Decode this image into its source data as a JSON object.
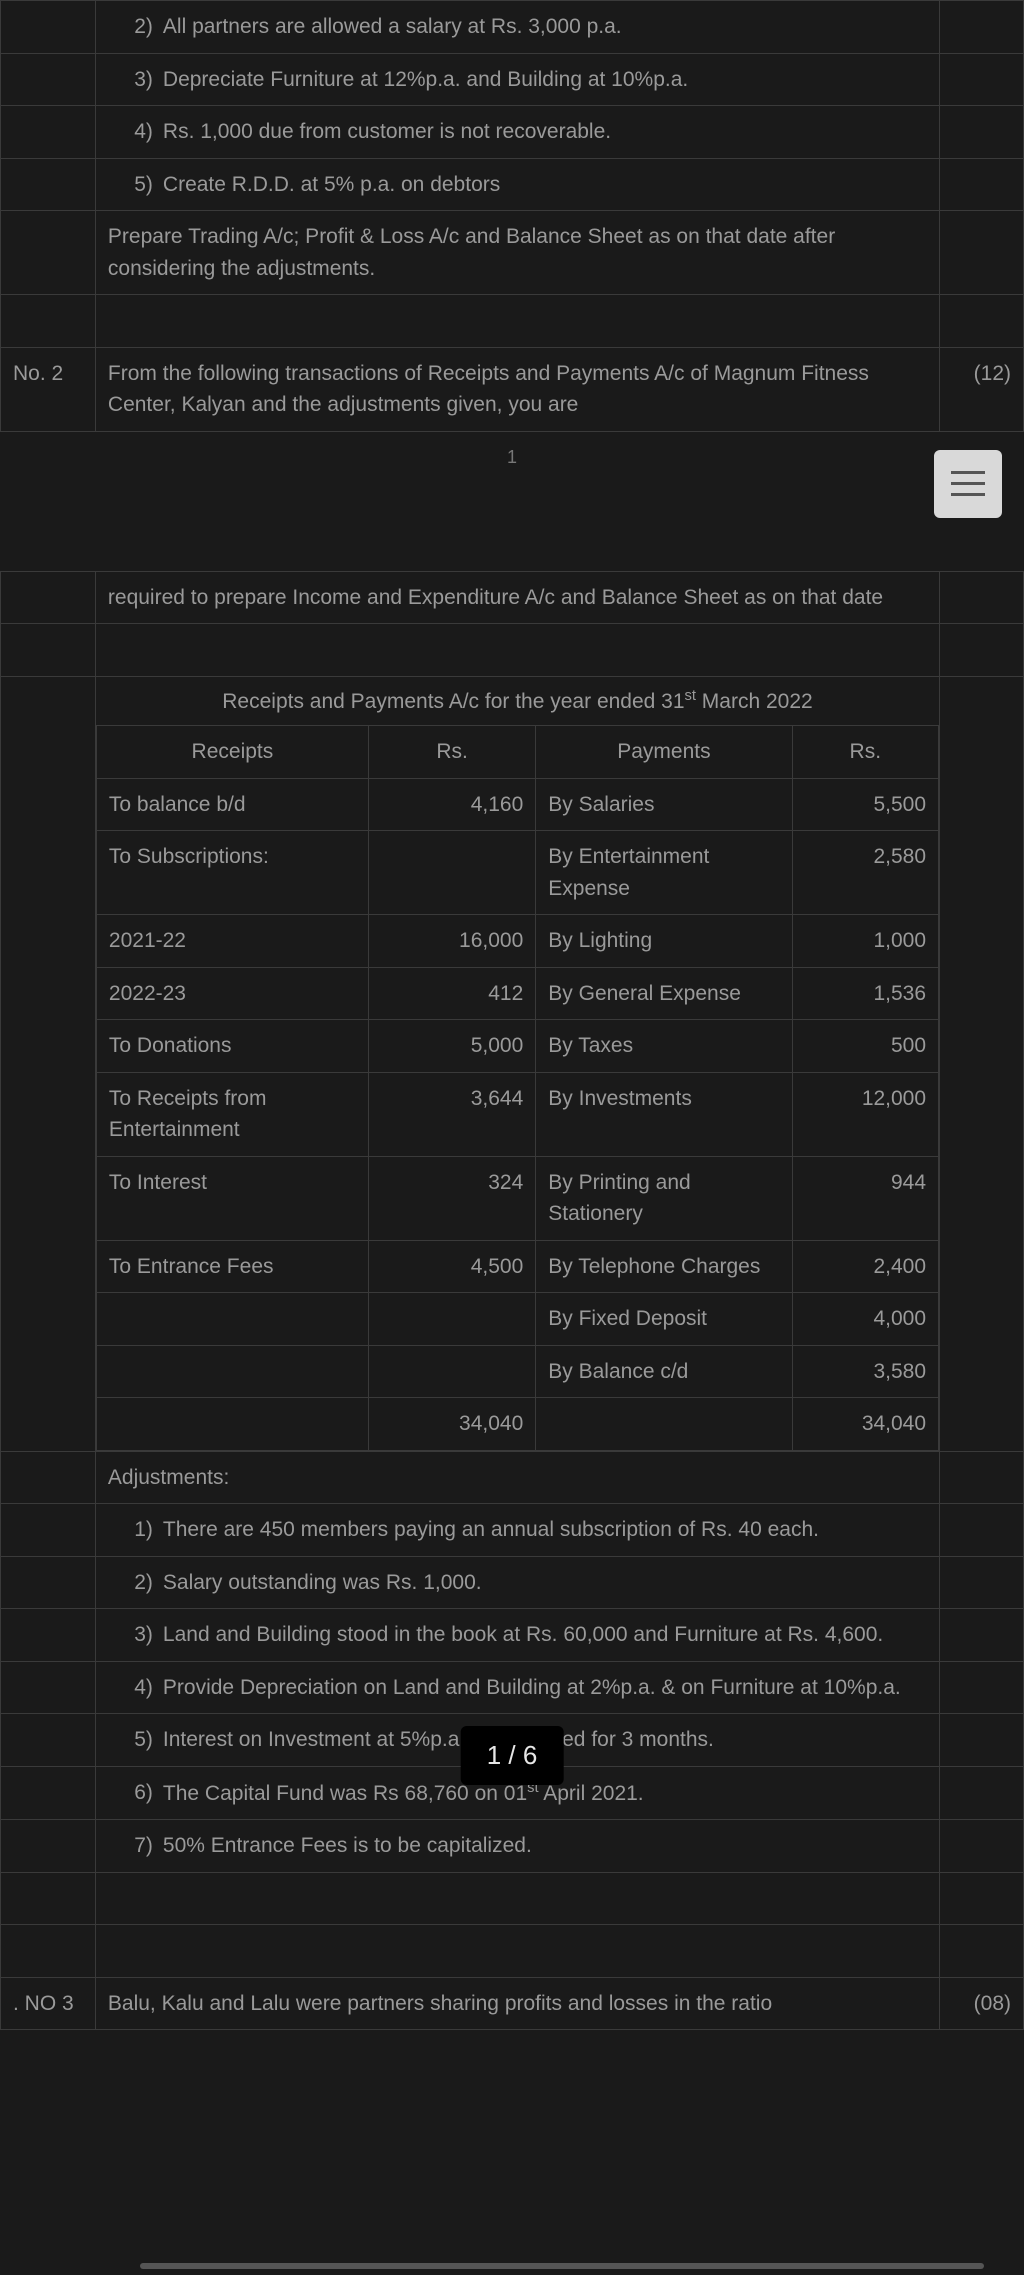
{
  "q1_items": [
    {
      "n": "2)",
      "t": "All partners are allowed a salary at Rs. 3,000 p.a."
    },
    {
      "n": "3)",
      "t": "Depreciate Furniture at 12%p.a. and Building at 10%p.a."
    },
    {
      "n": "4)",
      "t": "Rs. 1,000 due from customer is not recoverable."
    },
    {
      "n": "5)",
      "t": "Create R.D.D. at 5% p.a. on debtors"
    }
  ],
  "q1_instruction": "Prepare Trading A/c; Profit & Loss A/c and Balance Sheet as on that date after considering the adjustments.",
  "q2": {
    "label": "No. 2",
    "marks": "(12)",
    "intro_a": "From the following transactions of Receipts and Payments A/c of Magnum Fitness Center, Kalyan and the adjustments given, you are",
    "intro_b": "required to prepare Income and Expenditure A/c and Balance Sheet as on that date",
    "table_title_a": "Receipts and Payments A/c for the year ended 31",
    "table_title_sup": "st",
    "table_title_b": " March 2022",
    "headers": {
      "receipts": "Receipts",
      "rs1": "Rs.",
      "payments": "Payments",
      "rs2": "Rs."
    },
    "rows": [
      {
        "r": "To balance b/d",
        "a1": "4,160",
        "p": "By Salaries",
        "a2": "5,500"
      },
      {
        "r": "To Subscriptions:",
        "a1": "",
        "p": "By Entertainment Expense",
        "a2": "2,580"
      },
      {
        "r": "2021-22",
        "a1": "16,000",
        "p": "By Lighting",
        "a2": "1,000"
      },
      {
        "r": "2022-23",
        "a1": "412",
        "p": "By General Expense",
        "a2": "1,536"
      },
      {
        "r": "To Donations",
        "a1": "5,000",
        "p": "By Taxes",
        "a2": "500"
      },
      {
        "r": "To Receipts from Entertainment",
        "a1": "3,644",
        "p": "By Investments",
        "a2": "12,000"
      },
      {
        "r": "To Interest",
        "a1": "324",
        "p": "By Printing and Stationery",
        "a2": "944"
      },
      {
        "r": "To Entrance Fees",
        "a1": "4,500",
        "p": "By Telephone Charges",
        "a2": "2,400"
      },
      {
        "r": "",
        "a1": "",
        "p": "By Fixed Deposit",
        "a2": "4,000"
      },
      {
        "r": "",
        "a1": "",
        "p": "By Balance c/d",
        "a2": "3,580"
      },
      {
        "r": "",
        "a1": "34,040",
        "p": "",
        "a2": "34,040"
      }
    ],
    "adjustments_label": "Adjustments:",
    "adjustments": [
      {
        "n": "1)",
        "t": "There are 450 members paying an annual subscription of Rs. 40 each."
      },
      {
        "n": "2)",
        "t": "Salary outstanding was Rs. 1,000."
      },
      {
        "n": "3)",
        "t": "Land and Building stood in the book at Rs. 60,000 and Furniture at Rs. 4,600."
      },
      {
        "n": "4)",
        "t": "Provide Depreciation on Land and Building at 2%p.a. & on Furniture at 10%p.a."
      },
      {
        "n": "5)",
        "t": "Interest on Investment at 5%p.a. has accrued for 3 months."
      },
      {
        "n": "6)",
        "t_a": "The Capital Fund was Rs 68,760 on 01",
        "sup": "st",
        "t_b": " April 2021."
      },
      {
        "n": "7)",
        "t": "50% Entrance Fees is to be capitalized."
      }
    ]
  },
  "q3": {
    "label": ". NO 3",
    "marks": "(08)",
    "text": "Balu, Kalu and Lalu were partners sharing profits and losses in the ratio"
  },
  "page_mid": "1",
  "page_overlay": "1 / 6"
}
